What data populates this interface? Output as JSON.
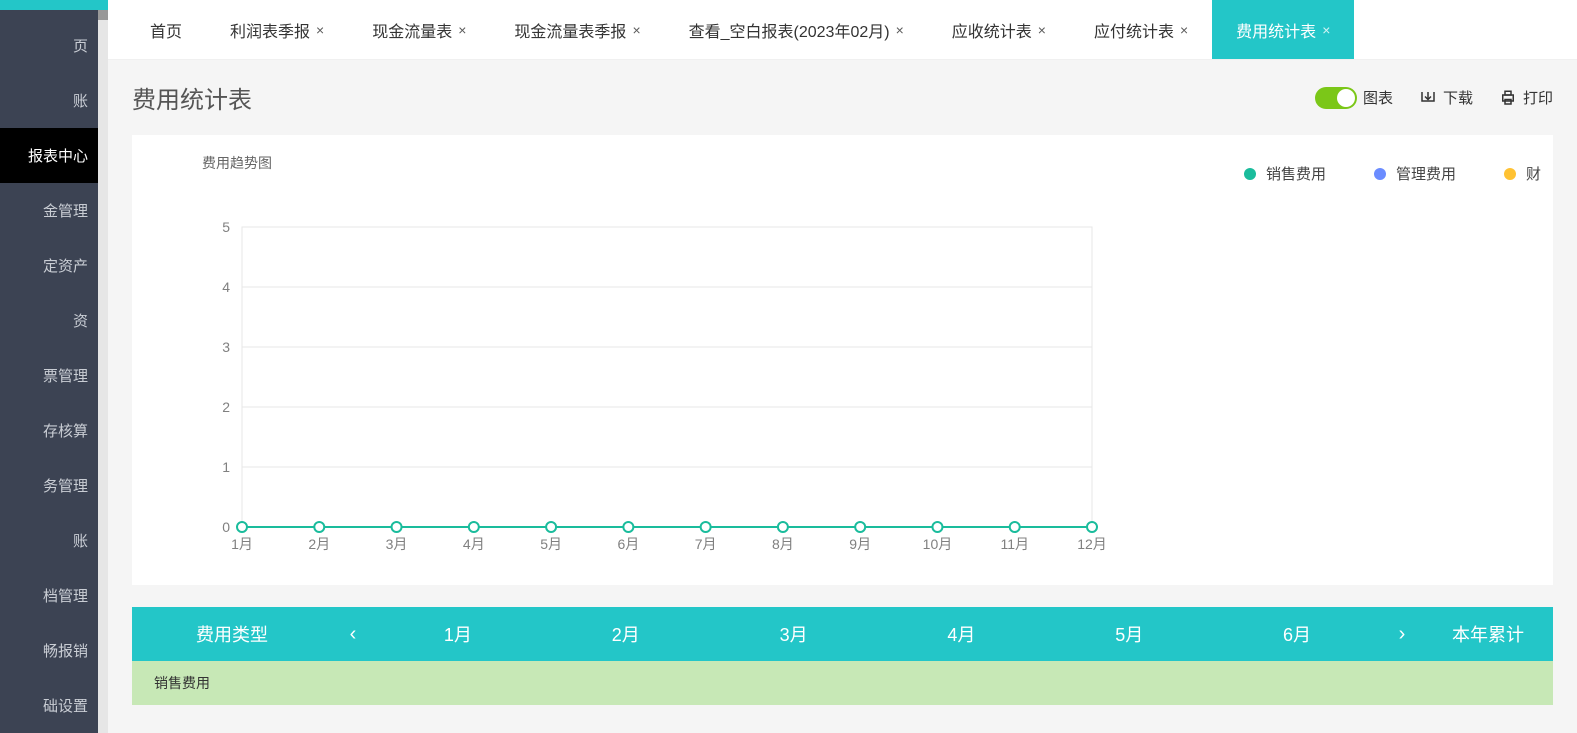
{
  "sidebar": {
    "items": [
      "页",
      "账",
      "报表中心",
      "金管理",
      "定资产",
      "资",
      "票管理",
      "存核算",
      "务管理",
      "账",
      "档管理",
      "畅报销",
      "础设置"
    ],
    "active_index": 2
  },
  "tabs": {
    "items": [
      {
        "label": "首页",
        "closable": false,
        "active": false
      },
      {
        "label": "利润表季报",
        "closable": true,
        "active": false
      },
      {
        "label": "现金流量表",
        "closable": true,
        "active": false
      },
      {
        "label": "现金流量表季报",
        "closable": true,
        "active": false
      },
      {
        "label": "查看_空白报表(2023年02月)",
        "closable": true,
        "active": false
      },
      {
        "label": "应收统计表",
        "closable": true,
        "active": false
      },
      {
        "label": "应付统计表",
        "closable": true,
        "active": false
      },
      {
        "label": "费用统计表",
        "closable": true,
        "active": true
      }
    ]
  },
  "page": {
    "title": "费用统计表",
    "chart_toggle_label": "图表",
    "download_label": "下载",
    "print_label": "打印"
  },
  "chart": {
    "title": "费用趋势图",
    "type": "line",
    "x_labels": [
      "1月",
      "2月",
      "3月",
      "4月",
      "5月",
      "6月",
      "7月",
      "8月",
      "9月",
      "10月",
      "11月",
      "12月"
    ],
    "ylim": [
      0,
      5
    ],
    "ytick_step": 1,
    "series": [
      {
        "name": "销售费用",
        "color": "#1abc9c",
        "values": [
          0,
          0,
          0,
          0,
          0,
          0,
          0,
          0,
          0,
          0,
          0,
          0
        ]
      }
    ],
    "legend": [
      {
        "name": "销售费用",
        "color": "#1abc9c"
      },
      {
        "name": "管理费用",
        "color": "#6b8cff"
      },
      {
        "name": "财",
        "color": "#ffc233"
      }
    ],
    "axis_color": "#999999",
    "grid_color": "#e7e7e7",
    "label_color": "#808080",
    "label_fontsize": 14,
    "marker_radius": 5,
    "line_width": 2,
    "plot_bg": "#ffffff"
  },
  "table": {
    "row_header": "费用类型",
    "summary_header": "本年累计",
    "month_headers": [
      "1月",
      "2月",
      "3月",
      "4月",
      "5月",
      "6月"
    ],
    "rows": [
      {
        "label": "销售费用",
        "cells": [
          "",
          "",
          "",
          "",
          "",
          ""
        ],
        "summary": ""
      }
    ],
    "header_bg": "#23c6c8",
    "header_text_color": "#ffffff",
    "row_bg": "#c7e8b6"
  }
}
